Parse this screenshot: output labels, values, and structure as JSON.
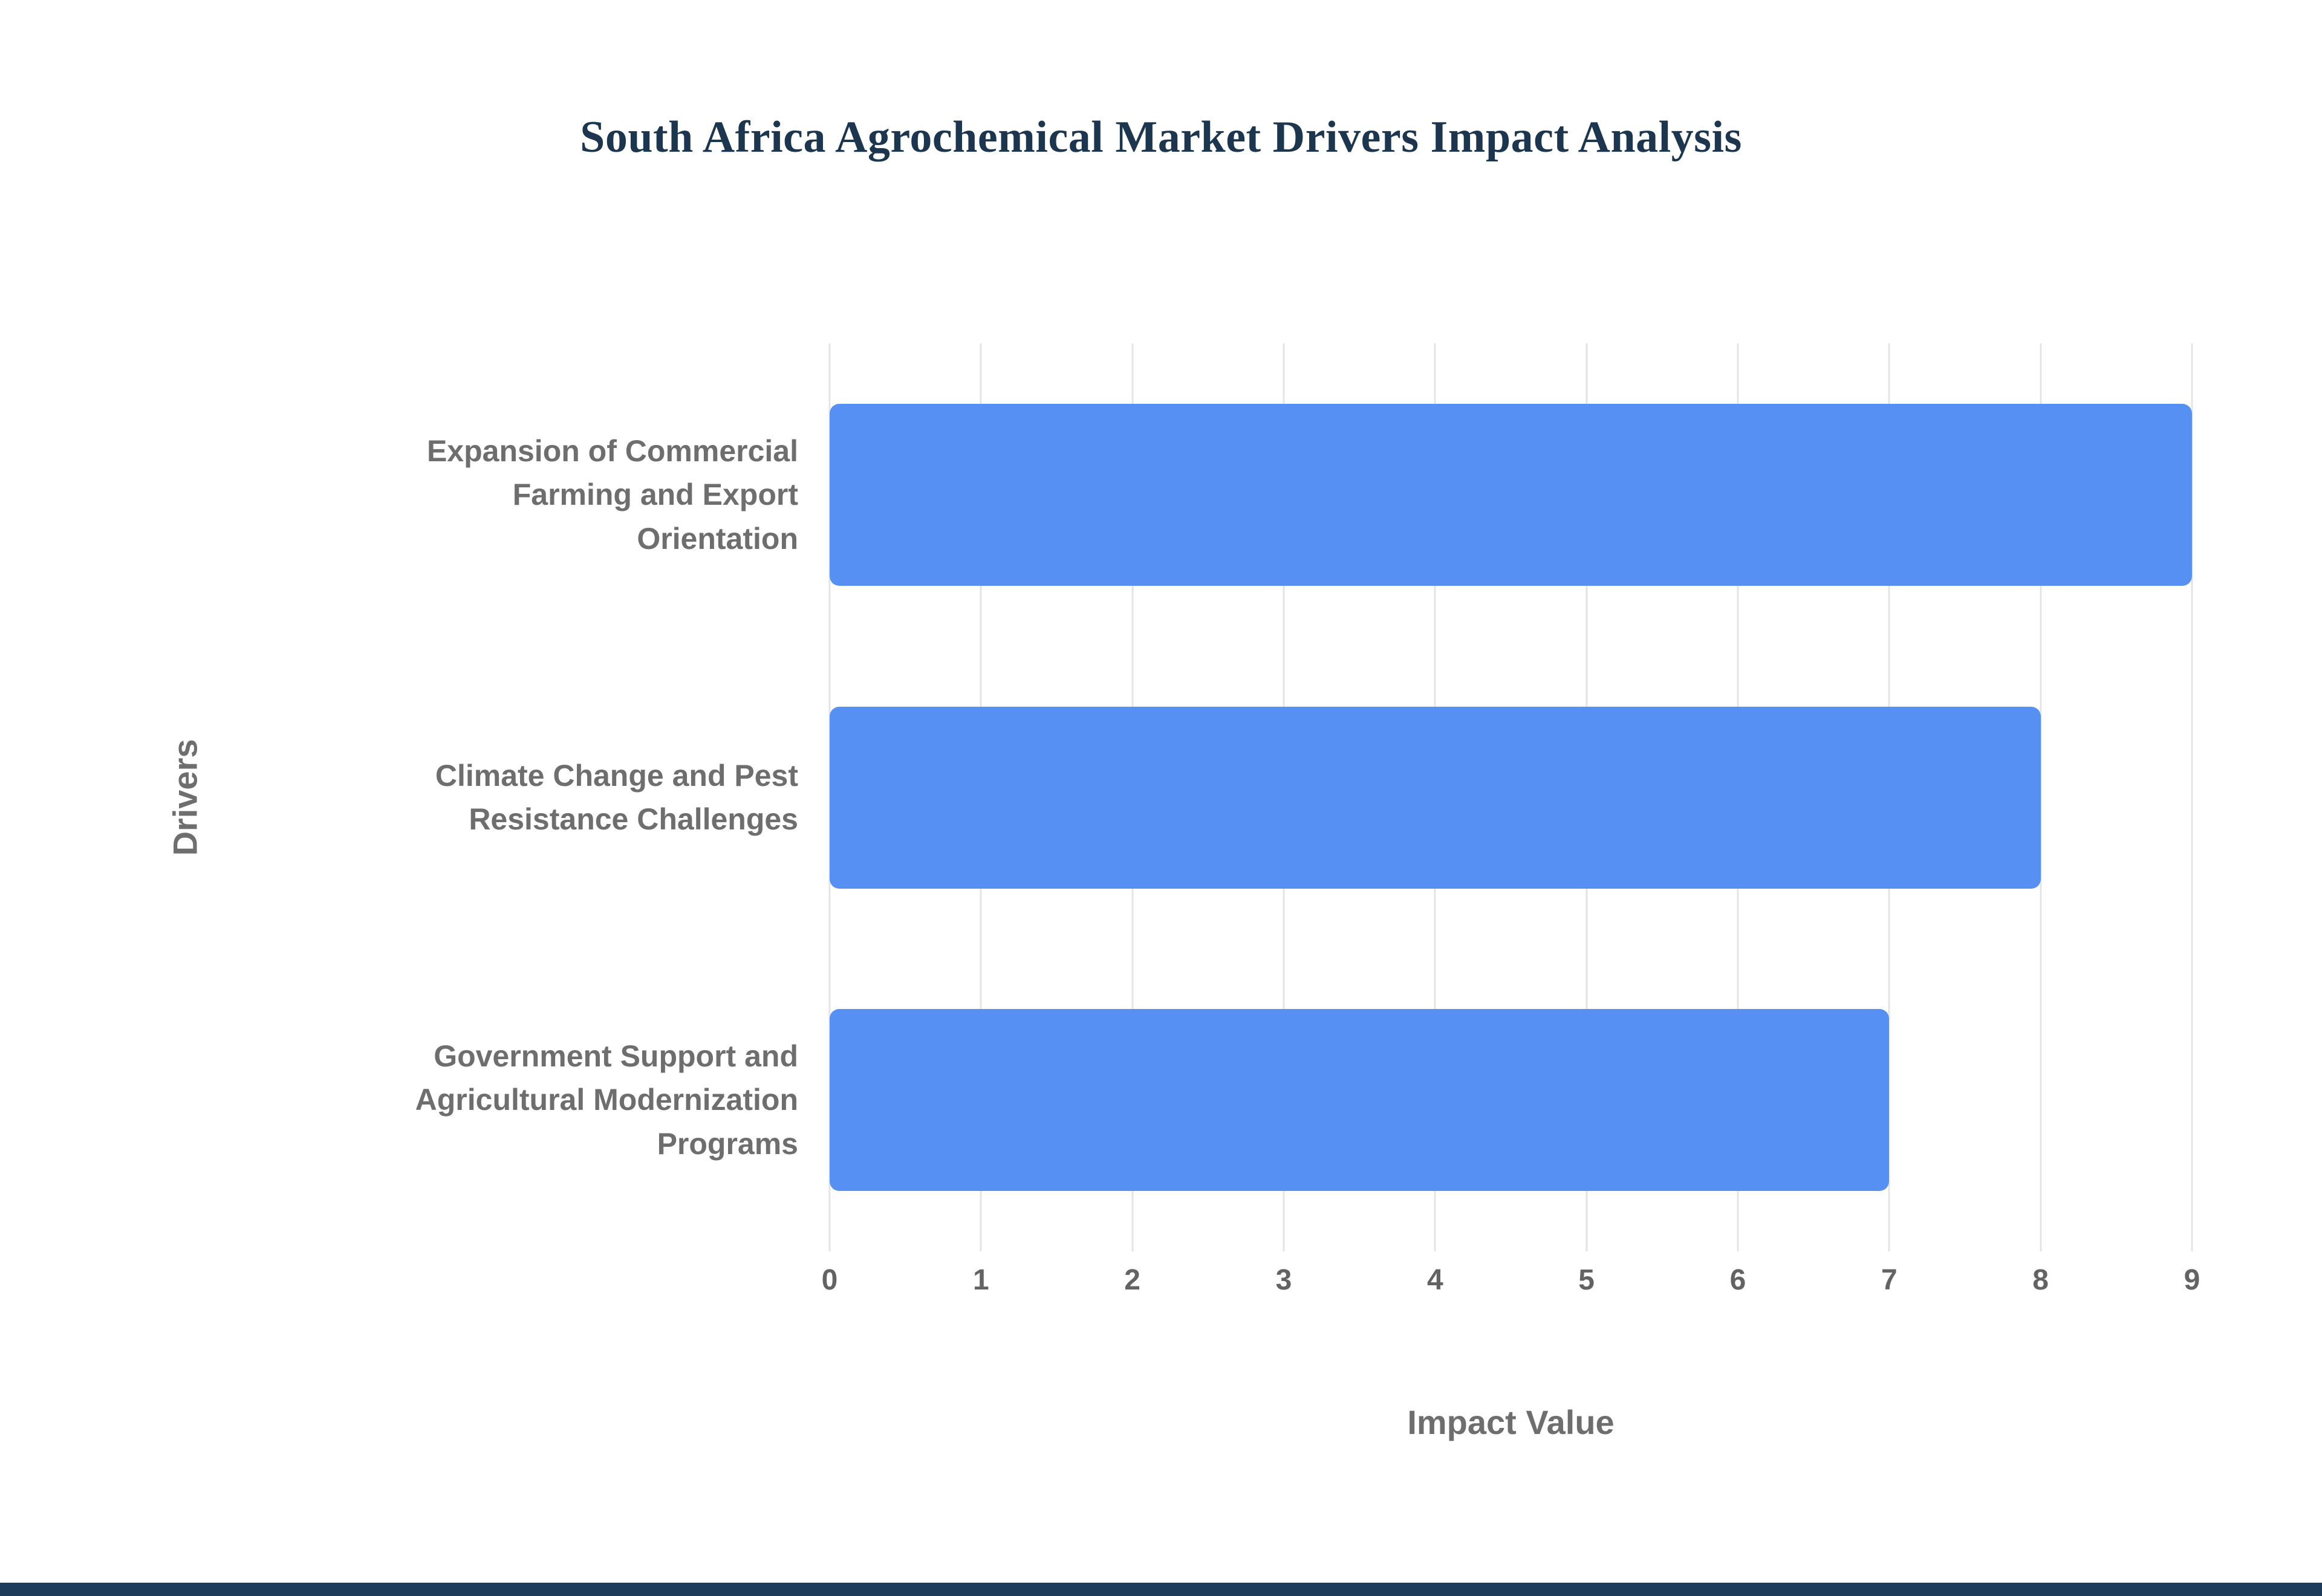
{
  "title": "South Africa Agrochemical Market Drivers Impact Analysis",
  "chart_data": {
    "type": "bar",
    "orientation": "horizontal",
    "title": "South Africa Agrochemical Market Drivers Impact Analysis",
    "categories": [
      "Expansion of Commercial Farming and Export Orientation",
      "Climate Change and Pest Resistance Challenges",
      "Government Support and Agricultural Modernization Programs"
    ],
    "values": [
      9,
      8,
      7
    ],
    "xlabel": "Impact Value",
    "ylabel": "Drivers",
    "xlim": [
      0,
      9
    ],
    "xticks": [
      0,
      1,
      2,
      3,
      4,
      5,
      6,
      7,
      8,
      9
    ],
    "grid": true,
    "legend": false
  },
  "colors": {
    "bar": "#5590f2",
    "title_text": "#1c3650",
    "axis_text": "#6e6e6e",
    "grid_line": "#e4e4e4",
    "footer_strip": "#1f3b5a"
  }
}
